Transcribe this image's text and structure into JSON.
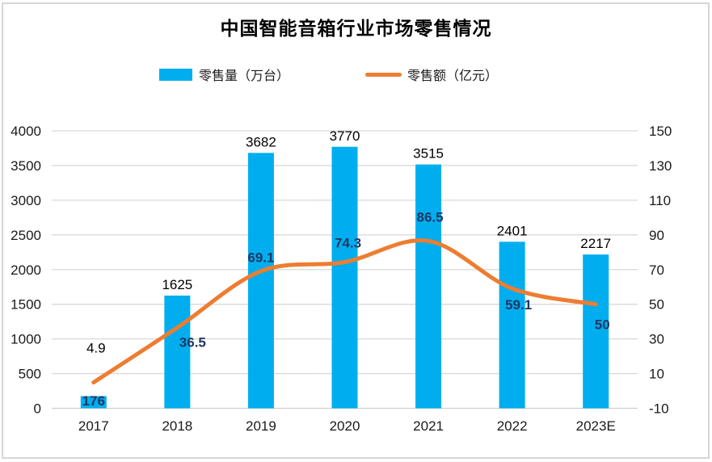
{
  "page": {
    "title": "中国智能音箱行业市场零售情况"
  },
  "legend": {
    "bar": {
      "label": "零售量（万台）",
      "color": "#00AEEF"
    },
    "line": {
      "label": "零售额（亿元）",
      "color": "#ED7D31"
    }
  },
  "chart_data": {
    "type": "bar",
    "subtype": "combo-bar-line-dual-axis",
    "title": "中国智能音箱行业市场零售情况",
    "categories": [
      "2017",
      "2018",
      "2019",
      "2020",
      "2021",
      "2022",
      "2023E"
    ],
    "series": [
      {
        "name": "零售量（万台）",
        "type": "bar",
        "axis": "left",
        "color": "#00AEEF",
        "values": [
          176,
          1625,
          3682,
          3770,
          3515,
          2401,
          2217
        ],
        "labels": [
          "176",
          "1625",
          "3682",
          "3770",
          "3515",
          "2401",
          "2217"
        ]
      },
      {
        "name": "零售额（亿元）",
        "type": "line",
        "axis": "right",
        "color": "#ED7D31",
        "smooth": true,
        "values": [
          4.9,
          36.5,
          69.1,
          74.3,
          86.5,
          59.1,
          50
        ],
        "labels": [
          "4.9",
          "36.5",
          "69.1",
          "74.3",
          "86.5",
          "59.1",
          "50"
        ]
      }
    ],
    "left_axis": {
      "min": 0,
      "max": 4000,
      "step": 500,
      "ticks": [
        "0",
        "500",
        "1000",
        "1500",
        "2000",
        "2500",
        "3000",
        "3500",
        "4000"
      ]
    },
    "right_axis": {
      "min": -10,
      "max": 150,
      "step": 20,
      "ticks": [
        "-10",
        "10",
        "30",
        "50",
        "70",
        "90",
        "110",
        "130",
        "150"
      ]
    },
    "grid": true,
    "legend_position": "top",
    "colors": {
      "gridline": "#D9D9D9",
      "baseline": "#CFCFCF",
      "tick_text": "#1a1a1a",
      "label_default": "#000000",
      "label_on_bar": "#1F3864"
    }
  }
}
